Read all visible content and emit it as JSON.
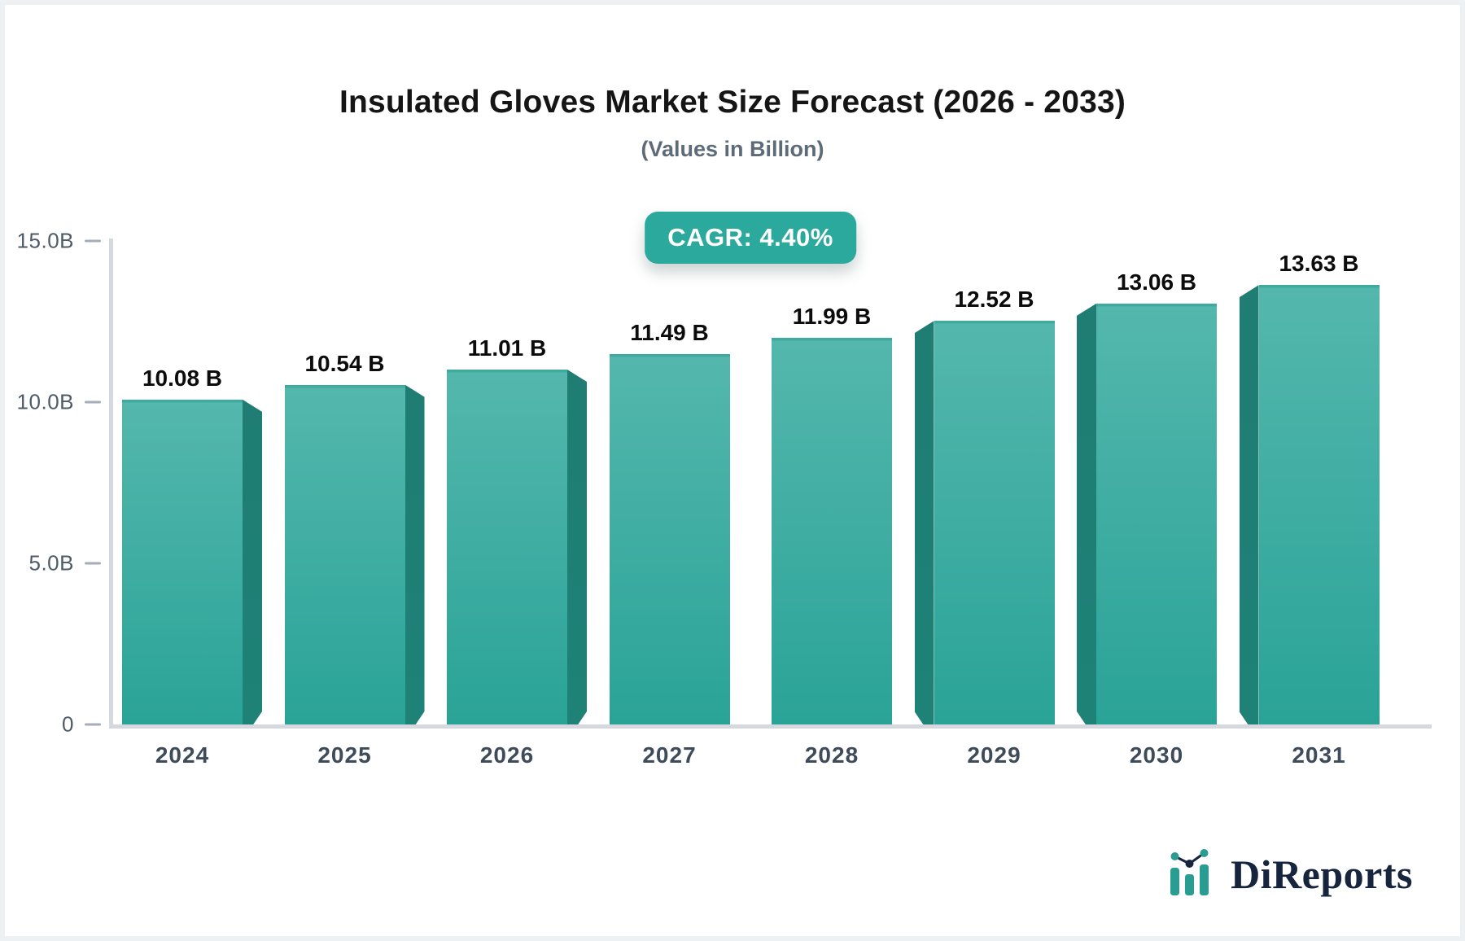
{
  "page": {
    "title": "Insulated Gloves Market Size Forecast (2026 - 2033)",
    "subtitle": "(Values in Billion)",
    "cagr_badge": "CAGR: 4.40%"
  },
  "chart_data": {
    "type": "bar",
    "title": "Insulated Gloves Market Size Forecast (2026 - 2033)",
    "subtitle": "(Values in Billion)",
    "cagr": "4.40%",
    "unit": "Billion",
    "categories": [
      "2024",
      "2025",
      "2026",
      "2027",
      "2028",
      "2029",
      "2030",
      "2031"
    ],
    "values": [
      10.08,
      10.54,
      11.01,
      11.49,
      11.99,
      12.52,
      13.06,
      13.63
    ],
    "value_labels": [
      "10.08 B",
      "10.54 B",
      "11.01 B",
      "11.49 B",
      "11.99 B",
      "12.52 B",
      "13.06 B",
      "13.63 B"
    ],
    "y_ticks": [
      {
        "value": 15,
        "label": "15.0B"
      },
      {
        "value": 10,
        "label": "10.0B"
      },
      {
        "value": 5,
        "label": "5.0B"
      },
      {
        "value": 0,
        "label": "0"
      }
    ],
    "ylim": [
      0,
      15
    ],
    "grid": false,
    "legend": false,
    "colors": {
      "bar_top": "#54b7ad",
      "bar_bottom": "#2aa397",
      "bar_side": "#1f7d73",
      "accent": "#2ba99d",
      "axis": "#d6d8e0",
      "tick_text": "#4d5a68"
    }
  },
  "logo": {
    "name": "DiReports",
    "icon": "bar-chart-logo-icon"
  }
}
